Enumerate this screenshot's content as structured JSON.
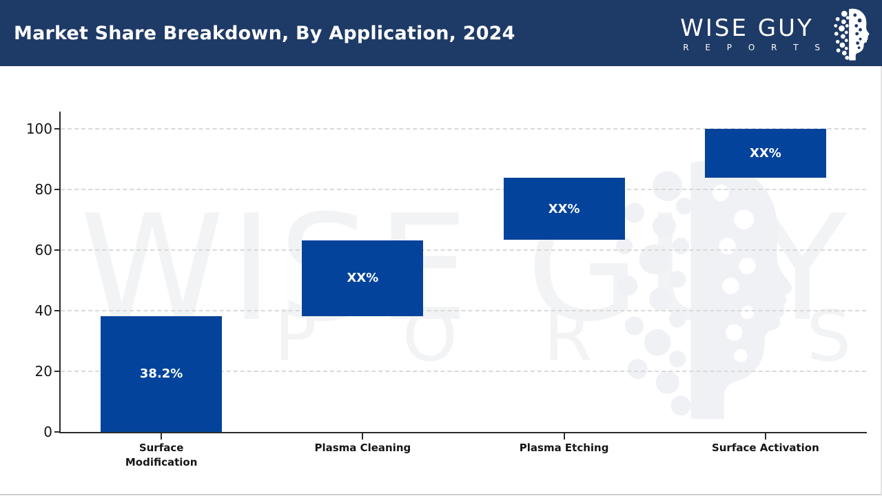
{
  "header": {
    "title": "Market Share Breakdown, By Application, 2024",
    "background_color": "#1e3a66",
    "logo": {
      "line1": "WISE GUY",
      "line2": "R E P O R T S"
    }
  },
  "watermark": {
    "line1": "WISE GUY",
    "line2": "P O R T S"
  },
  "chart_data": {
    "type": "bar",
    "variant": "waterfall-floating-segments",
    "title": "Market Share Breakdown, By Application, 2024",
    "categories": [
      "Surface Modification",
      "Plasma Cleaning",
      "Plasma Etching",
      "Surface Activation"
    ],
    "categories_display": [
      "Surface\nModification",
      "Plasma Cleaning",
      "Plasma Etching",
      "Surface Activation"
    ],
    "segments": [
      {
        "category": "Surface Modification",
        "start": 0,
        "end": 38.2,
        "label": "38.2%"
      },
      {
        "category": "Plasma Cleaning",
        "start": 38.2,
        "end": 63.2,
        "label": "XX%"
      },
      {
        "category": "Plasma Etching",
        "start": 63.4,
        "end": 83.8,
        "label": "XX%"
      },
      {
        "category": "Surface Activation",
        "start": 83.8,
        "end": 100,
        "label": "XX%"
      }
    ],
    "xlabel": "",
    "ylabel": "",
    "ylim": [
      0,
      100
    ],
    "yticks": [
      0,
      20,
      40,
      60,
      80,
      100
    ],
    "grid": "horizontal-dashed",
    "legend": "none",
    "bar_color": "#04439b",
    "bar_label_color": "#ffffff",
    "axis_color": "#2a2a2a",
    "gridline_color": "#d9d9d9"
  }
}
